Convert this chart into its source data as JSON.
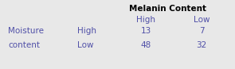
{
  "melanin_header": "Melanin Content",
  "col_headers": [
    "High",
    "Low"
  ],
  "row_label_left": [
    "Moisture",
    "content"
  ],
  "row_label_mid": [
    "High",
    "Low"
  ],
  "values": [
    [
      13,
      7
    ],
    [
      48,
      32
    ]
  ],
  "text_color": "#5050a8",
  "header_bold_color": "#000000",
  "bg_color": "#e8e8e8",
  "fontsize": 7.5
}
